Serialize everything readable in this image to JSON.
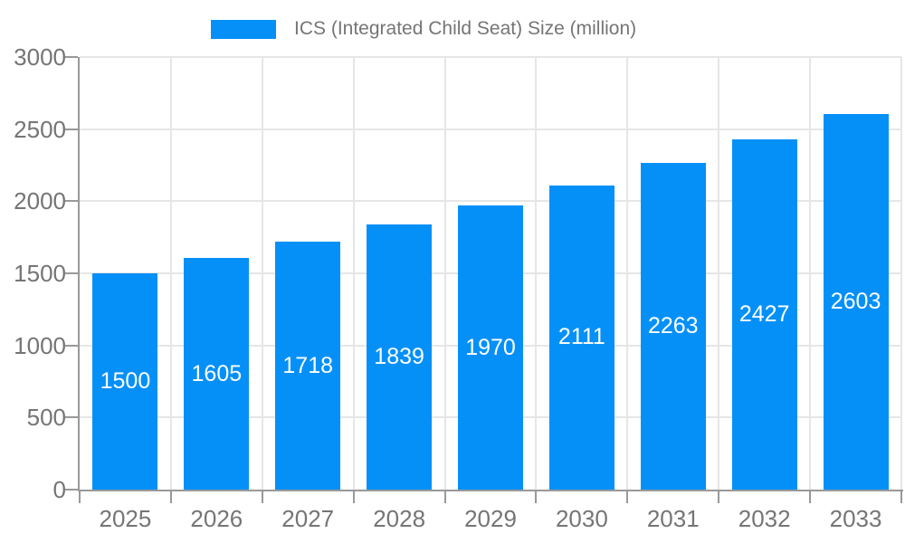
{
  "legend": {
    "label": "ICS (Integrated Child Seat) Size (million)"
  },
  "chart_data": {
    "type": "bar",
    "title": "",
    "categories": [
      "2025",
      "2026",
      "2027",
      "2028",
      "2029",
      "2030",
      "2031",
      "2032",
      "2033"
    ],
    "series": [
      {
        "name": "ICS (Integrated Child Seat) Size (million)",
        "values": [
          1500,
          1605,
          1718,
          1839,
          1970,
          2111,
          2263,
          2427,
          2603
        ]
      }
    ],
    "xlabel": "",
    "ylabel": "",
    "ylim": [
      0,
      3000
    ],
    "yticks": [
      0,
      500,
      1000,
      1500,
      2000,
      2500,
      3000
    ],
    "grid": true,
    "legend_position": "top",
    "value_labels": "inside-center",
    "colors": {
      "bar": "#0590f8",
      "grid": "#e6e6e6",
      "axis": "#999999",
      "tick_text": "#757575",
      "value_label_text": "#ffffff",
      "background": "#ffffff"
    }
  }
}
